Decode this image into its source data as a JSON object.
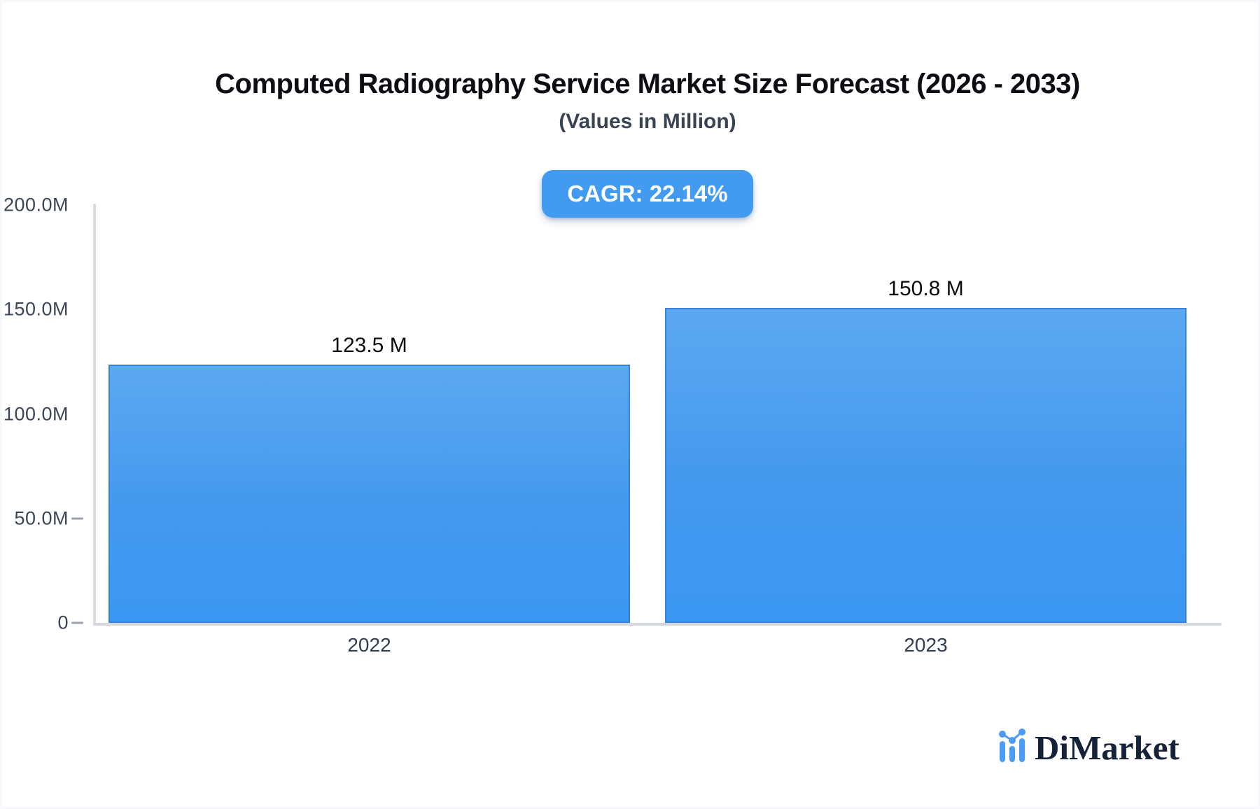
{
  "header": {
    "title": "Computed Radiography Service Market Size Forecast (2026 - 2033)",
    "subtitle": "(Values in Million)"
  },
  "badge": {
    "label": "CAGR: 22.14%"
  },
  "chart_data": {
    "type": "bar",
    "title": "Computed Radiography Service Market Size Forecast (2026 - 2033)",
    "subtitle": "(Values in Million)",
    "unit": "Million",
    "cagr_percent": 22.14,
    "categories": [
      "2022",
      "2023"
    ],
    "values": [
      123.5,
      150.8
    ],
    "value_labels": [
      "123.5 M",
      "150.8 M"
    ],
    "ylim": [
      0,
      200
    ],
    "yticks": [
      {
        "value": 200,
        "label": "200.0M"
      },
      {
        "value": 150,
        "label": "150.0M"
      },
      {
        "value": 100,
        "label": "100.0M"
      },
      {
        "value": 50,
        "label": "50.0M"
      },
      {
        "value": 0,
        "label": "0"
      }
    ],
    "grid": false,
    "legend": null,
    "bar_colors": {
      "top": "#5CA8F1",
      "bottom": "#3B97F2",
      "stroke": "#3484DB"
    }
  },
  "branding": {
    "name": "DiMarket",
    "icon": "bar-chart-trend-icon"
  },
  "colors": {
    "accent_blue": "#429BF1",
    "badge_text": "#FFFFFF",
    "axis_line": "#D7DAE0",
    "tick_text": "#3D4654",
    "label_text": "#0B0D11",
    "logo_navy": "#152238",
    "logo_blue": "#4A9CF5"
  }
}
